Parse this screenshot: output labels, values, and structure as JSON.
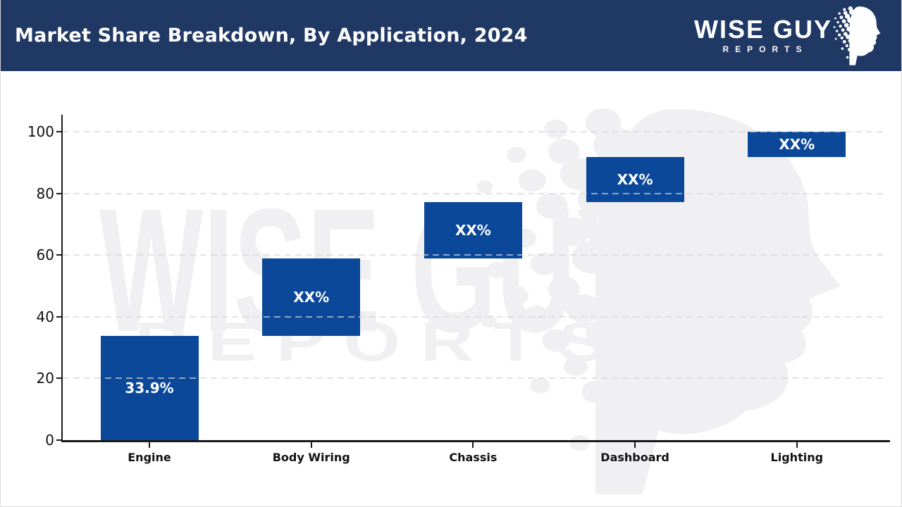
{
  "header": {
    "title": "Market Share Breakdown, By Application, 2024",
    "brand": {
      "line1": "WISE GUY",
      "line2": "REPORTS"
    },
    "bg_color": "#203864"
  },
  "watermark": {
    "line1": "WISE GUY",
    "line2": "R E P O R T S"
  },
  "chart_data": {
    "type": "bar",
    "subtype": "waterfall",
    "title": "Market Share Breakdown, By Application, 2024",
    "categories": [
      "Engine",
      "Body Wiring",
      "Chassis",
      "Dashboard",
      "Lighting"
    ],
    "segments": [
      {
        "category": "Engine",
        "start": 0,
        "end": 33.9,
        "label": "33.9%"
      },
      {
        "category": "Body Wiring",
        "start": 33.9,
        "end": 58.8,
        "label": "XX%"
      },
      {
        "category": "Chassis",
        "start": 58.8,
        "end": 77.1,
        "label": "XX%"
      },
      {
        "category": "Dashboard",
        "start": 77.1,
        "end": 91.7,
        "label": "XX%"
      },
      {
        "category": "Lighting",
        "start": 91.7,
        "end": 100,
        "label": "XX%"
      }
    ],
    "xlabel": "",
    "ylabel": "",
    "yticks": [
      0,
      20,
      40,
      60,
      80,
      100
    ],
    "ylim": [
      0,
      106
    ],
    "bar_color": "#0b4899",
    "grid": true,
    "grid_style": "dashed",
    "legend": false
  }
}
